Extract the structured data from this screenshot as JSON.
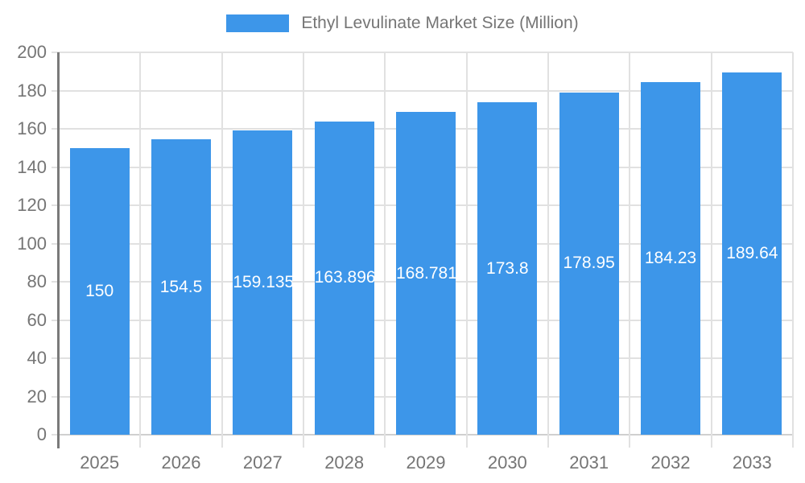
{
  "chart_data": {
    "type": "bar",
    "title": "Ethyl Levulinate Market Size (Million)",
    "categories": [
      "2025",
      "2026",
      "2027",
      "2028",
      "2029",
      "2030",
      "2031",
      "2032",
      "2033"
    ],
    "series": [
      {
        "name": "Ethyl Levulinate Market Size (Million)",
        "values": [
          150,
          154.5,
          159.135,
          163.896,
          168.781,
          173.8,
          178.95,
          184.23,
          189.64
        ]
      }
    ],
    "bar_labels": [
      "150",
      "154.5",
      "159.135",
      "163.896",
      "168.781",
      "173.8",
      "178.95",
      "184.23",
      "189.64"
    ],
    "xlabel": "",
    "ylabel": "",
    "ylim": [
      0,
      200
    ],
    "ytick_step": 20,
    "ytick_labels": [
      "0",
      "20",
      "40",
      "60",
      "80",
      "100",
      "120",
      "140",
      "160",
      "180",
      "200"
    ],
    "grid": true,
    "legend_position": "top",
    "colors": {
      "bar": "#3D96E9",
      "grid_line": "#E1E1E1",
      "zero_line": "#CFCFCF",
      "axis_line": "#7A7A7A",
      "axis_text": "#757575",
      "bar_label_text": "#FFFFFF",
      "background": "#FFFFFF"
    }
  }
}
